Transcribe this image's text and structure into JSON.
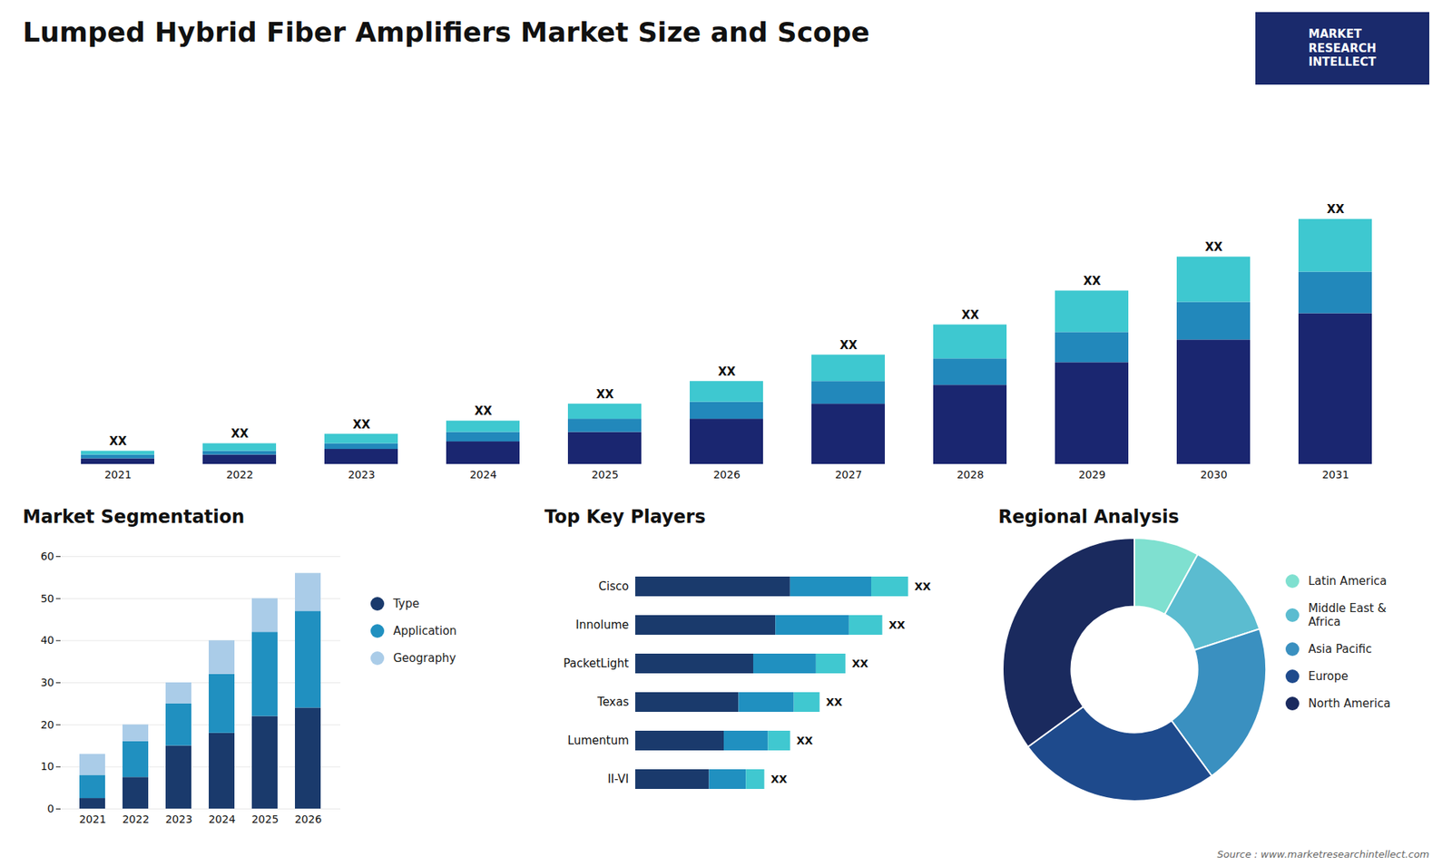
{
  "title": "Lumped Hybrid Fiber Amplifiers Market Size and Scope",
  "annotations": [
    "MARKET\nRESEARCH\nINTELLECT",
    "Source : www.marketresearchintellect.com"
  ],
  "chart_data": [
    {
      "type": "bar",
      "stacked": true,
      "categories": [
        "2021",
        "2022",
        "2023",
        "2024",
        "2025",
        "2026",
        "2027",
        "2028",
        "2029",
        "2030",
        "2031"
      ],
      "series": [
        {
          "color": "#1a2670",
          "values": [
            1.5,
            2.5,
            4.0,
            6.0,
            8.5,
            12.0,
            16.0,
            21.0,
            27.0,
            33.0,
            40.0
          ]
        },
        {
          "color": "#2288bb",
          "values": [
            1.0,
            1.0,
            1.5,
            2.5,
            3.5,
            4.5,
            6.0,
            7.0,
            8.0,
            10.0,
            11.0
          ]
        },
        {
          "color": "#3ec8d0",
          "values": [
            1.0,
            2.0,
            2.5,
            3.0,
            4.0,
            5.5,
            7.0,
            9.0,
            11.0,
            12.0,
            14.0
          ]
        }
      ],
      "value_labels": [
        "XX",
        "XX",
        "XX",
        "XX",
        "XX",
        "XX",
        "XX",
        "XX",
        "XX",
        "XX",
        "XX"
      ],
      "ylim": [
        0,
        91
      ],
      "tick_labels": "x"
    },
    {
      "type": "bar",
      "stacked": true,
      "title": "Market Segmentation",
      "categories": [
        "2021",
        "2022",
        "2023",
        "2024",
        "2025",
        "2026"
      ],
      "series": [
        {
          "name": "Type",
          "color": "#1a3a6c",
          "values": [
            2.5,
            7.5,
            15.0,
            18.0,
            22.0,
            24.0
          ]
        },
        {
          "name": "Application",
          "color": "#2090c0",
          "values": [
            5.5,
            8.5,
            10.0,
            14.0,
            20.0,
            23.0
          ]
        },
        {
          "name": "Geography",
          "color": "#aacce8",
          "values": [
            5.0,
            4.0,
            5.0,
            8.0,
            8.0,
            9.0
          ]
        }
      ],
      "ylim": [
        0,
        60
      ],
      "yticks": [
        0,
        10,
        20,
        30,
        40,
        50,
        60
      ],
      "grid": true,
      "legend": "right"
    },
    {
      "type": "bar",
      "stacked": true,
      "orientation": "horizontal",
      "title": "Top Key Players",
      "categories": [
        "Cisco",
        "Innolume",
        "PacketLight",
        "Texas",
        "Lumentum",
        "II-VI"
      ],
      "series": [
        {
          "color": "#1a3a6c",
          "values": [
            0.42,
            0.38,
            0.32,
            0.28,
            0.24,
            0.2
          ]
        },
        {
          "color": "#2090c0",
          "values": [
            0.22,
            0.2,
            0.17,
            0.15,
            0.12,
            0.1
          ]
        },
        {
          "color": "#40c8d0",
          "values": [
            0.1,
            0.09,
            0.08,
            0.07,
            0.06,
            0.05
          ]
        }
      ],
      "value_labels": [
        "XX",
        "XX",
        "XX",
        "XX",
        "XX",
        "XX"
      ],
      "xlim": [
        0,
        0.8
      ],
      "tick_labels": "y"
    },
    {
      "type": "pie",
      "title": "Regional Analysis",
      "categories": [
        "Latin America",
        "Middle East &\nAfrica",
        "Asia Pacific",
        "Europe",
        "North America"
      ],
      "values": [
        8,
        12,
        20,
        25,
        35
      ],
      "colors": [
        "#7fe0d0",
        "#5bbcd0",
        "#3a90c0",
        "#1e4a8c",
        "#1a2a5e"
      ],
      "legend": "right"
    }
  ]
}
